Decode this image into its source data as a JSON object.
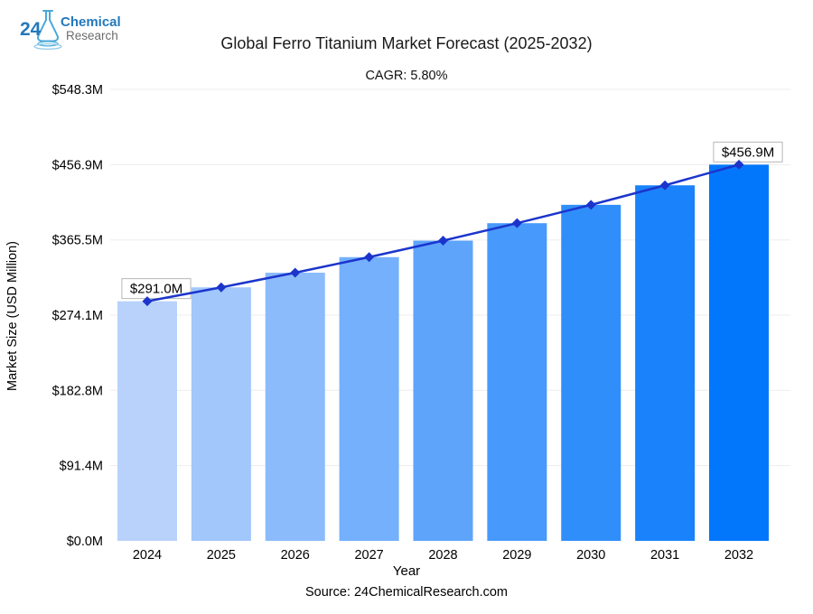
{
  "logo": {
    "number": "24",
    "line1": "Chemical",
    "line2": "Research"
  },
  "header": {
    "title": "Global Ferro Titanium Market Forecast (2025-2032)",
    "subtitle": "CAGR: 5.80%"
  },
  "axes": {
    "y_title": "Market Size (USD Million)",
    "x_title": "Year"
  },
  "footer": {
    "source": "Source: 24ChemicalResearch.com"
  },
  "colors": {
    "grid": "#ededed",
    "annotation_border": "#b7b7b7",
    "annotation_bg": "#ffffff",
    "text": "#000000",
    "logo_blue": "#2478bc",
    "logo_flask": "#49a8d8",
    "logo_gray": "#6d6d6d"
  },
  "chart_data": {
    "type": "bar",
    "title": "Global Ferro Titanium Market Forecast (2025-2032)",
    "subtitle": "CAGR: 5.80%",
    "xlabel": "Year",
    "ylabel": "Market Size (USD Million)",
    "unit": "USD Million",
    "categories": [
      "2024",
      "2025",
      "2026",
      "2027",
      "2028",
      "2029",
      "2030",
      "2031",
      "2032"
    ],
    "values": [
      291.0,
      307.9,
      325.7,
      344.6,
      364.6,
      385.8,
      408.1,
      431.8,
      456.9
    ],
    "ylim": [
      0,
      548.3
    ],
    "yticks": {
      "values": [
        0,
        91.4,
        182.8,
        274.1,
        365.5,
        456.9,
        548.3
      ],
      "labels": [
        "$0.0M",
        "$91.4M",
        "$182.8M",
        "$274.1M",
        "$365.5M",
        "$456.9M",
        "$548.3M"
      ]
    },
    "grid": true,
    "legend": "none",
    "bar_colors": [
      "#b8d2fb",
      "#a1c7fb",
      "#8bbbfb",
      "#74b0fb",
      "#5ea4fb",
      "#4799fb",
      "#308efb",
      "#1a82fb",
      "#0377fb"
    ],
    "line": {
      "color": "#1b35cc",
      "width": 2.5,
      "marker": "diamond",
      "marker_color": "#1b35cc"
    },
    "annotations": [
      {
        "index": 0,
        "label": "$291.0M"
      },
      {
        "index": 8,
        "label": "$456.9M"
      }
    ]
  }
}
